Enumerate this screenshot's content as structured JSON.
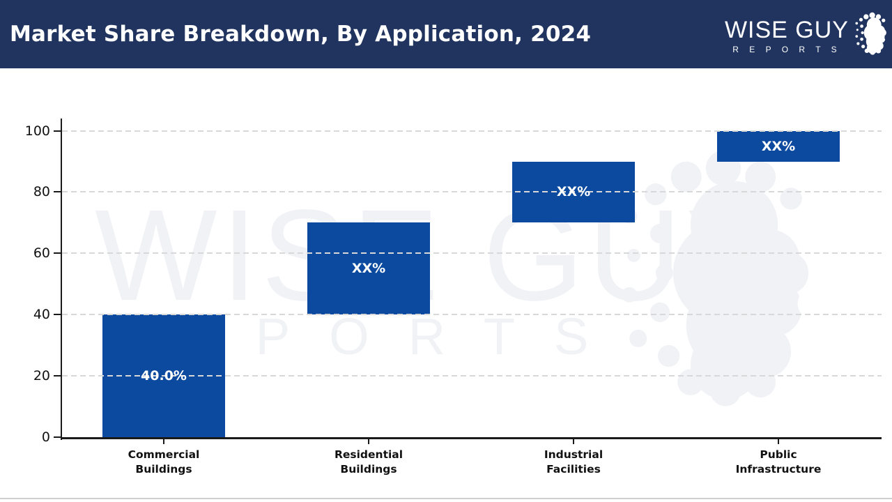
{
  "header": {
    "title": "Market Share Breakdown, By Application, 2024",
    "logo": {
      "line1": "WISE GUY",
      "line2": "R E P O R T S"
    }
  },
  "watermark": {
    "line1": "WISE GUY",
    "line2": "REPORTS"
  },
  "chart_data": {
    "type": "bar",
    "variant": "floating-segment-waterfall",
    "title": "Market Share Breakdown, By Application, 2024",
    "categories": [
      "Commercial Buildings",
      "Residential Buildings",
      "Industrial Facilities",
      "Public Infrastructure"
    ],
    "category_lines": [
      [
        "Commercial",
        "Buildings"
      ],
      [
        "Residential",
        "Buildings"
      ],
      [
        "Industrial",
        "Facilities"
      ],
      [
        "Public",
        "Infrastructure"
      ]
    ],
    "bars": [
      {
        "category": "Commercial Buildings",
        "start": 0,
        "end": 40,
        "value": 40.0,
        "label": "40.0%"
      },
      {
        "category": "Residential Buildings",
        "start": 40,
        "end": 70,
        "value": 30,
        "label": "XX%"
      },
      {
        "category": "Industrial Facilities",
        "start": 70,
        "end": 90,
        "value": 20,
        "label": "XX%"
      },
      {
        "category": "Public Infrastructure",
        "start": 90,
        "end": 100,
        "value": 10,
        "label": "XX%"
      }
    ],
    "y_ticks": [
      0,
      20,
      40,
      60,
      80,
      100
    ],
    "ylim": [
      0,
      104
    ],
    "xlabel": "",
    "ylabel": "",
    "grid": "horizontal-dashed",
    "legend": "none",
    "bar_color": "#0b4a9f",
    "bar_label_color": "#ffffff"
  },
  "colors": {
    "header_bg": "#20345f",
    "axis": "#1a1a1a",
    "gridline": "#d8d8d8",
    "watermark": "#f1f2f6",
    "bottom_line": "#cfcfcf",
    "page_bg": "#ffffff"
  }
}
